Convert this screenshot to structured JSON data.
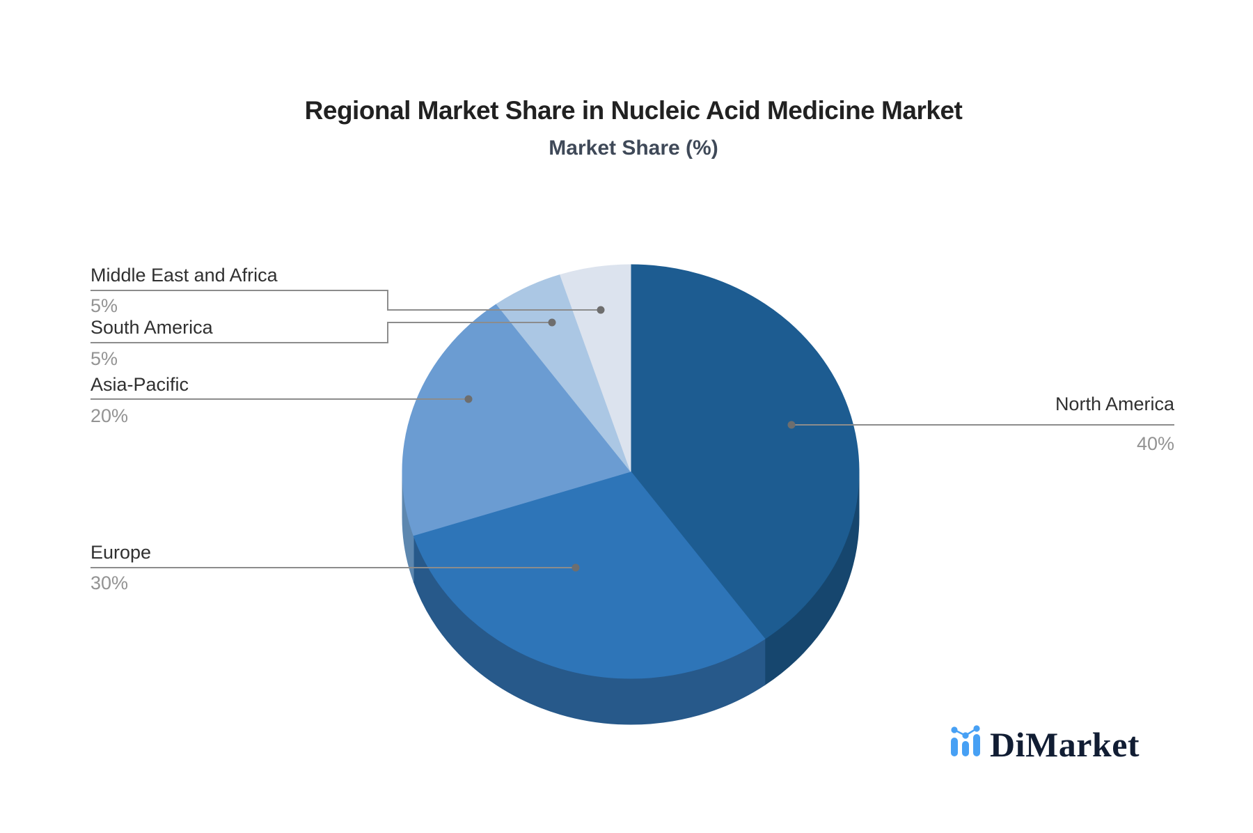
{
  "chart_data": {
    "type": "pie",
    "style": "3d",
    "title": "Regional Market Share in Nucleic Acid Medicine Market",
    "subtitle": "Market Share (%)",
    "unit": "%",
    "direction": "clockwise",
    "start_angle_deg": 0,
    "legend": "none",
    "labels_show_percent": true,
    "segments": [
      {
        "label": "North America",
        "value": 40,
        "display_value": "40%",
        "color": "#1d5c91",
        "side_color": "#16466e"
      },
      {
        "label": "Europe",
        "value": 30,
        "display_value": "30%",
        "color": "#2e75b8",
        "side_color": "#27598a"
      },
      {
        "label": "Asia-Pacific",
        "value": 20,
        "display_value": "20%",
        "color": "#6b9cd2",
        "side_color": "#5d87af"
      },
      {
        "label": "South America",
        "value": 5,
        "display_value": "5%",
        "color": "#abc7e4",
        "side_color": "#8aa9c8"
      },
      {
        "label": "Middle East and Africa",
        "value": 5,
        "display_value": "5%",
        "color": "#dce3ee",
        "side_color": "#b7c2d3"
      }
    ],
    "label_style": {
      "name_color": "#303030",
      "value_color": "#939393",
      "line_color": "#8c8c8c",
      "dot_color": "#6e6e6e"
    }
  },
  "branding": {
    "logo_text": "DiMarket",
    "logo_text_color": "#111d33",
    "logo_icon_color": "#47a0f4",
    "logo_icon": "bar-chart-with-trend-dots"
  }
}
